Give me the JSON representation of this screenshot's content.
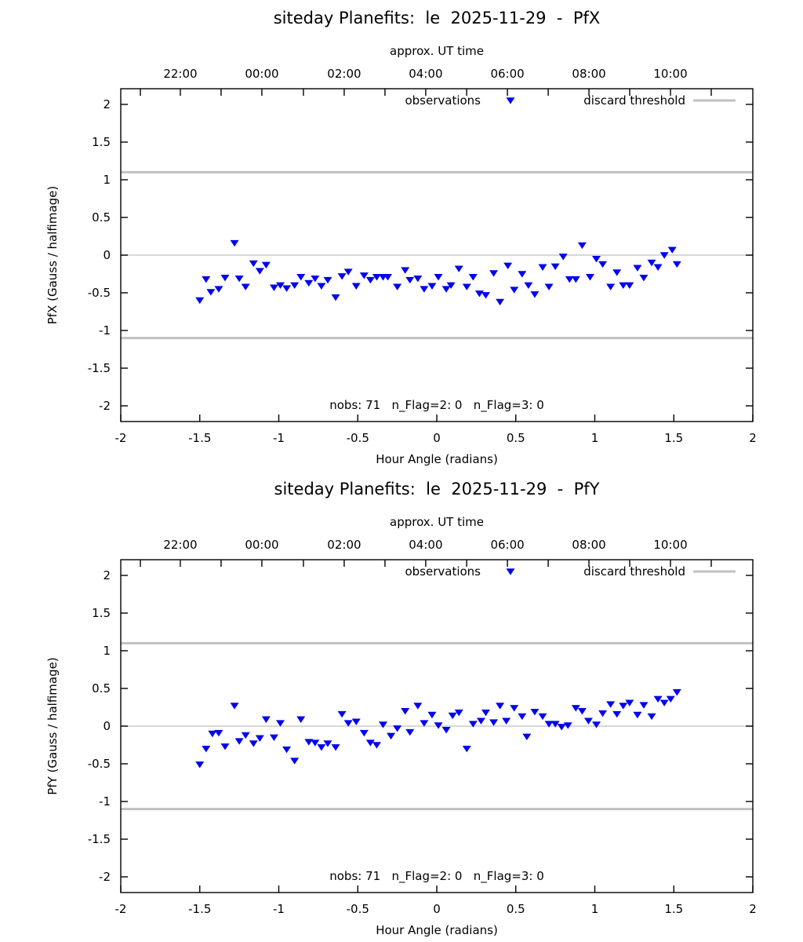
{
  "colors": {
    "observations": "#0000ee",
    "threshold": "#c0c0c0",
    "zero_line": "#cccccc",
    "axis": "#000000"
  },
  "chart_data": [
    {
      "type": "scatter",
      "title": "siteday Planefits:  le  2025-11-29  -  PfX",
      "top_axis": {
        "label": "approx. UT time",
        "ticks": [
          {
            "label": "22:00",
            "hour_angle": -1.623
          },
          {
            "label": "00:00",
            "hour_angle": -1.107
          },
          {
            "label": "02:00",
            "hour_angle": -0.586
          },
          {
            "label": "04:00",
            "hour_angle": -0.07
          },
          {
            "label": "06:00",
            "hour_angle": 0.447
          },
          {
            "label": "08:00",
            "hour_angle": 0.963
          },
          {
            "label": "10:00",
            "hour_angle": 1.479
          }
        ],
        "minor_tick_hour_angles": [
          -1.876,
          -1.365,
          -0.844,
          -0.328,
          0.189,
          0.705,
          1.221,
          1.737
        ]
      },
      "xlabel": "Hour Angle (radians)",
      "ylabel": "PfX (Gauss / halfimage)",
      "xlim": [
        -2,
        2
      ],
      "ylim": [
        -2.2,
        2.2
      ],
      "x_ticks": [
        -2,
        -1.5,
        -1,
        -0.5,
        0,
        0.5,
        1,
        1.5,
        2
      ],
      "y_ticks": [
        -2,
        -1.5,
        -1,
        -0.5,
        0,
        0.5,
        1,
        1.5,
        2
      ],
      "grid": false,
      "legend_position": "top-inside",
      "legend": [
        {
          "label": "observations",
          "marker": "triangle-down"
        },
        {
          "label": "discard threshold",
          "marker": "line"
        }
      ],
      "discard_threshold": [
        1.1,
        -1.1
      ],
      "zero_line": 0,
      "annotation": "nobs: 71   n_Flag=2: 0   n_Flag=3: 0",
      "series": [
        {
          "name": "observations",
          "points": [
            [
              -1.5,
              -0.6
            ],
            [
              -1.46,
              -0.32
            ],
            [
              -1.43,
              -0.49
            ],
            [
              -1.38,
              -0.45
            ],
            [
              -1.34,
              -0.3
            ],
            [
              -1.28,
              0.16
            ],
            [
              -1.25,
              -0.31
            ],
            [
              -1.21,
              -0.42
            ],
            [
              -1.16,
              -0.11
            ],
            [
              -1.12,
              -0.21
            ],
            [
              -1.08,
              -0.13
            ],
            [
              -1.03,
              -0.43
            ],
            [
              -0.99,
              -0.4
            ],
            [
              -0.95,
              -0.44
            ],
            [
              -0.9,
              -0.4
            ],
            [
              -0.86,
              -0.29
            ],
            [
              -0.81,
              -0.37
            ],
            [
              -0.77,
              -0.31
            ],
            [
              -0.73,
              -0.41
            ],
            [
              -0.69,
              -0.33
            ],
            [
              -0.64,
              -0.56
            ],
            [
              -0.6,
              -0.28
            ],
            [
              -0.56,
              -0.22
            ],
            [
              -0.51,
              -0.41
            ],
            [
              -0.46,
              -0.27
            ],
            [
              -0.42,
              -0.33
            ],
            [
              -0.38,
              -0.29
            ],
            [
              -0.34,
              -0.29
            ],
            [
              -0.31,
              -0.29
            ],
            [
              -0.25,
              -0.42
            ],
            [
              -0.2,
              -0.2
            ],
            [
              -0.17,
              -0.33
            ],
            [
              -0.12,
              -0.31
            ],
            [
              -0.08,
              -0.45
            ],
            [
              -0.03,
              -0.41
            ],
            [
              0.01,
              -0.29
            ],
            [
              0.06,
              -0.45
            ],
            [
              0.09,
              -0.4
            ],
            [
              0.14,
              -0.18
            ],
            [
              0.19,
              -0.42
            ],
            [
              0.23,
              -0.29
            ],
            [
              0.27,
              -0.51
            ],
            [
              0.31,
              -0.53
            ],
            [
              0.36,
              -0.24
            ],
            [
              0.4,
              -0.62
            ],
            [
              0.45,
              -0.14
            ],
            [
              0.49,
              -0.46
            ],
            [
              0.54,
              -0.25
            ],
            [
              0.58,
              -0.4
            ],
            [
              0.62,
              -0.52
            ],
            [
              0.67,
              -0.16
            ],
            [
              0.71,
              -0.42
            ],
            [
              0.75,
              -0.15
            ],
            [
              0.8,
              -0.02
            ],
            [
              0.84,
              -0.32
            ],
            [
              0.88,
              -0.32
            ],
            [
              0.92,
              0.13
            ],
            [
              0.97,
              -0.29
            ],
            [
              1.01,
              -0.05
            ],
            [
              1.05,
              -0.12
            ],
            [
              1.1,
              -0.42
            ],
            [
              1.14,
              -0.23
            ],
            [
              1.18,
              -0.4
            ],
            [
              1.22,
              -0.4
            ],
            [
              1.27,
              -0.17
            ],
            [
              1.31,
              -0.3
            ],
            [
              1.36,
              -0.1
            ],
            [
              1.4,
              -0.16
            ],
            [
              1.44,
              0.0
            ],
            [
              1.49,
              0.07
            ],
            [
              1.52,
              -0.12
            ]
          ]
        }
      ]
    },
    {
      "type": "scatter",
      "title": "siteday Planefits:  le  2025-11-29  -  PfY",
      "top_axis": {
        "label": "approx. UT time",
        "ticks": [
          {
            "label": "22:00",
            "hour_angle": -1.623
          },
          {
            "label": "00:00",
            "hour_angle": -1.107
          },
          {
            "label": "02:00",
            "hour_angle": -0.586
          },
          {
            "label": "04:00",
            "hour_angle": -0.07
          },
          {
            "label": "06:00",
            "hour_angle": 0.447
          },
          {
            "label": "08:00",
            "hour_angle": 0.963
          },
          {
            "label": "10:00",
            "hour_angle": 1.479
          }
        ],
        "minor_tick_hour_angles": [
          -1.876,
          -1.365,
          -0.844,
          -0.328,
          0.189,
          0.705,
          1.221,
          1.737
        ]
      },
      "xlabel": "Hour Angle (radians)",
      "ylabel": "PfY (Gauss / halfimage)",
      "xlim": [
        -2,
        2
      ],
      "ylim": [
        -2.2,
        2.2
      ],
      "x_ticks": [
        -2,
        -1.5,
        -1,
        -0.5,
        0,
        0.5,
        1,
        1.5,
        2
      ],
      "y_ticks": [
        -2,
        -1.5,
        -1,
        -0.5,
        0,
        0.5,
        1,
        1.5,
        2
      ],
      "grid": false,
      "legend_position": "top-inside",
      "legend": [
        {
          "label": "observations",
          "marker": "triangle-down"
        },
        {
          "label": "discard threshold",
          "marker": "line"
        }
      ],
      "discard_threshold": [
        1.1,
        -1.1
      ],
      "zero_line": 0,
      "annotation": "nobs: 71   n_Flag=2: 0   n_Flag=3: 0",
      "series": [
        {
          "name": "observations",
          "points": [
            [
              -1.5,
              -0.51
            ],
            [
              -1.46,
              -0.3
            ],
            [
              -1.42,
              -0.1
            ],
            [
              -1.38,
              -0.09
            ],
            [
              -1.34,
              -0.27
            ],
            [
              -1.28,
              0.27
            ],
            [
              -1.25,
              -0.2
            ],
            [
              -1.21,
              -0.12
            ],
            [
              -1.16,
              -0.23
            ],
            [
              -1.12,
              -0.16
            ],
            [
              -1.08,
              0.09
            ],
            [
              -1.03,
              -0.15
            ],
            [
              -0.99,
              0.04
            ],
            [
              -0.95,
              -0.31
            ],
            [
              -0.9,
              -0.46
            ],
            [
              -0.86,
              0.09
            ],
            [
              -0.81,
              -0.21
            ],
            [
              -0.77,
              -0.22
            ],
            [
              -0.73,
              -0.28
            ],
            [
              -0.69,
              -0.23
            ],
            [
              -0.64,
              -0.28
            ],
            [
              -0.6,
              0.16
            ],
            [
              -0.56,
              0.04
            ],
            [
              -0.51,
              0.06
            ],
            [
              -0.46,
              -0.09
            ],
            [
              -0.42,
              -0.22
            ],
            [
              -0.38,
              -0.25
            ],
            [
              -0.34,
              0.02
            ],
            [
              -0.29,
              -0.13
            ],
            [
              -0.25,
              -0.03
            ],
            [
              -0.2,
              0.2
            ],
            [
              -0.17,
              -0.08
            ],
            [
              -0.12,
              0.27
            ],
            [
              -0.08,
              0.04
            ],
            [
              -0.03,
              0.15
            ],
            [
              0.01,
              0.01
            ],
            [
              0.06,
              -0.05
            ],
            [
              0.1,
              0.14
            ],
            [
              0.14,
              0.18
            ],
            [
              0.19,
              -0.3
            ],
            [
              0.23,
              0.03
            ],
            [
              0.28,
              0.07
            ],
            [
              0.31,
              0.18
            ],
            [
              0.36,
              0.05
            ],
            [
              0.4,
              0.27
            ],
            [
              0.44,
              0.07
            ],
            [
              0.49,
              0.24
            ],
            [
              0.54,
              0.13
            ],
            [
              0.57,
              -0.14
            ],
            [
              0.62,
              0.19
            ],
            [
              0.67,
              0.13
            ],
            [
              0.71,
              0.03
            ],
            [
              0.75,
              0.03
            ],
            [
              0.79,
              -0.01
            ],
            [
              0.83,
              0.01
            ],
            [
              0.88,
              0.24
            ],
            [
              0.92,
              0.2
            ],
            [
              0.96,
              0.07
            ],
            [
              1.01,
              0.02
            ],
            [
              1.05,
              0.17
            ],
            [
              1.1,
              0.29
            ],
            [
              1.14,
              0.16
            ],
            [
              1.18,
              0.27
            ],
            [
              1.22,
              0.31
            ],
            [
              1.27,
              0.15
            ],
            [
              1.31,
              0.28
            ],
            [
              1.36,
              0.13
            ],
            [
              1.4,
              0.36
            ],
            [
              1.44,
              0.31
            ],
            [
              1.48,
              0.36
            ],
            [
              1.52,
              0.45
            ]
          ]
        }
      ]
    }
  ]
}
